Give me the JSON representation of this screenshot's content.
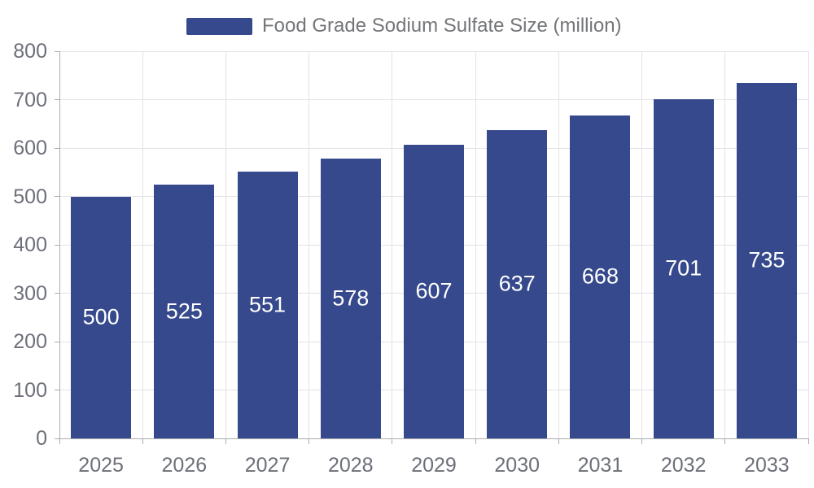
{
  "chart_data": {
    "type": "bar",
    "legend": "Food Grade Sodium Sulfate Size (million)",
    "legend_position": "top",
    "categories": [
      "2025",
      "2026",
      "2027",
      "2028",
      "2029",
      "2030",
      "2031",
      "2032",
      "2033"
    ],
    "values": [
      500,
      525,
      551,
      578,
      607,
      637,
      668,
      701,
      735
    ],
    "value_labels": [
      "500",
      "525",
      "551",
      "578",
      "607",
      "637",
      "668",
      "701",
      "735"
    ],
    "value_label_position": "inside-middle",
    "xlabel": "",
    "ylabel": "",
    "ylim": [
      0,
      800
    ],
    "yticks": [
      0,
      100,
      200,
      300,
      400,
      500,
      600,
      700,
      800
    ],
    "grid": true
  },
  "colors": {
    "bar": "#36498C",
    "grid_line": "#E3E3E8",
    "axis_line": "#ABACB1",
    "axis_label": "#6E7079",
    "legend_text": "#737578",
    "bar_label": "#FFFFFF",
    "background": "#FFFFFF"
  }
}
